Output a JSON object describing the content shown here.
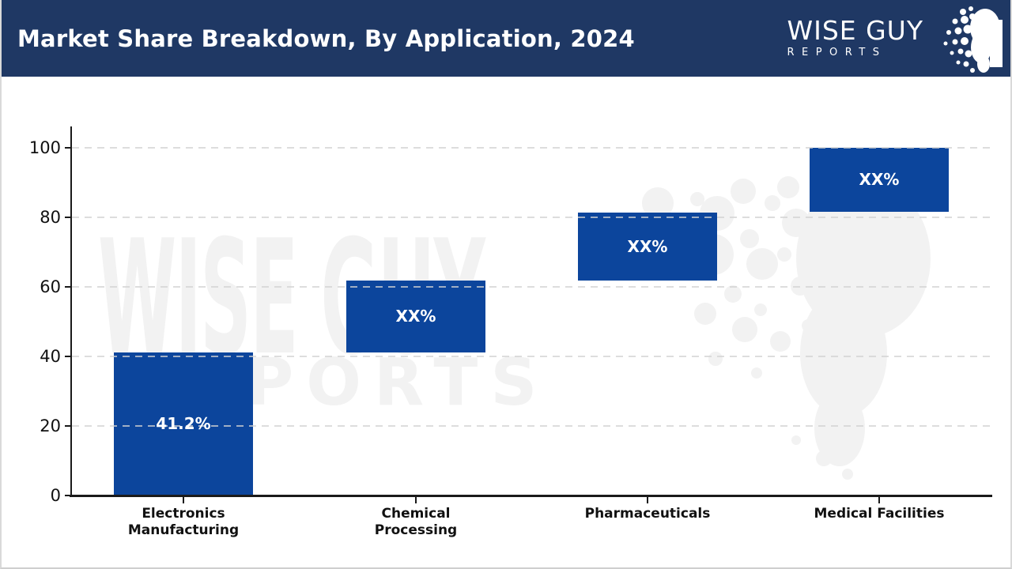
{
  "header": {
    "title": "Market Share Breakdown, By Application, 2024",
    "logo": {
      "brand_top": "WISE GUY",
      "brand_bottom": "REPORTS"
    }
  },
  "watermark": {
    "line1": "WISE GUY",
    "line2": "REPORTS"
  },
  "colors": {
    "header_bg": "#1f3864",
    "header_text": "#ffffff",
    "bar_fill": "#0c459c",
    "bar_label": "#ffffff",
    "grid": "#dedede",
    "axis": "#1a1a1a",
    "watermark": "#f2f2f2",
    "page_bg": "#ffffff"
  },
  "chart_data": {
    "type": "bar",
    "subtype": "waterfall",
    "title": "Market Share Breakdown, By Application, 2024",
    "xlabel": "",
    "ylabel": "",
    "ylim": [
      0,
      107
    ],
    "yticks": [
      0,
      20,
      40,
      60,
      80,
      100
    ],
    "grid": "horizontal-dashed",
    "legend": "none",
    "categories": [
      "Electronics Manufacturing",
      "Chemical Processing",
      "Pharmaceuticals",
      "Medical Facilities"
    ],
    "xtick_labels": [
      [
        "Electronics",
        "Manufacturing"
      ],
      [
        "Chemical",
        "Processing"
      ],
      [
        "Pharmaceuticals"
      ],
      [
        "Medical Facilities"
      ]
    ],
    "segments": [
      {
        "category": "Electronics Manufacturing",
        "start": 0,
        "end": 41.2,
        "label": "41.2%"
      },
      {
        "category": "Chemical Processing",
        "start": 41.2,
        "end": 61.8,
        "label": "XX%"
      },
      {
        "category": "Pharmaceuticals",
        "start": 61.8,
        "end": 81.4,
        "label": "XX%"
      },
      {
        "category": "Medical Facilities",
        "start": 81.6,
        "end": 100,
        "label": "XX%"
      }
    ]
  }
}
